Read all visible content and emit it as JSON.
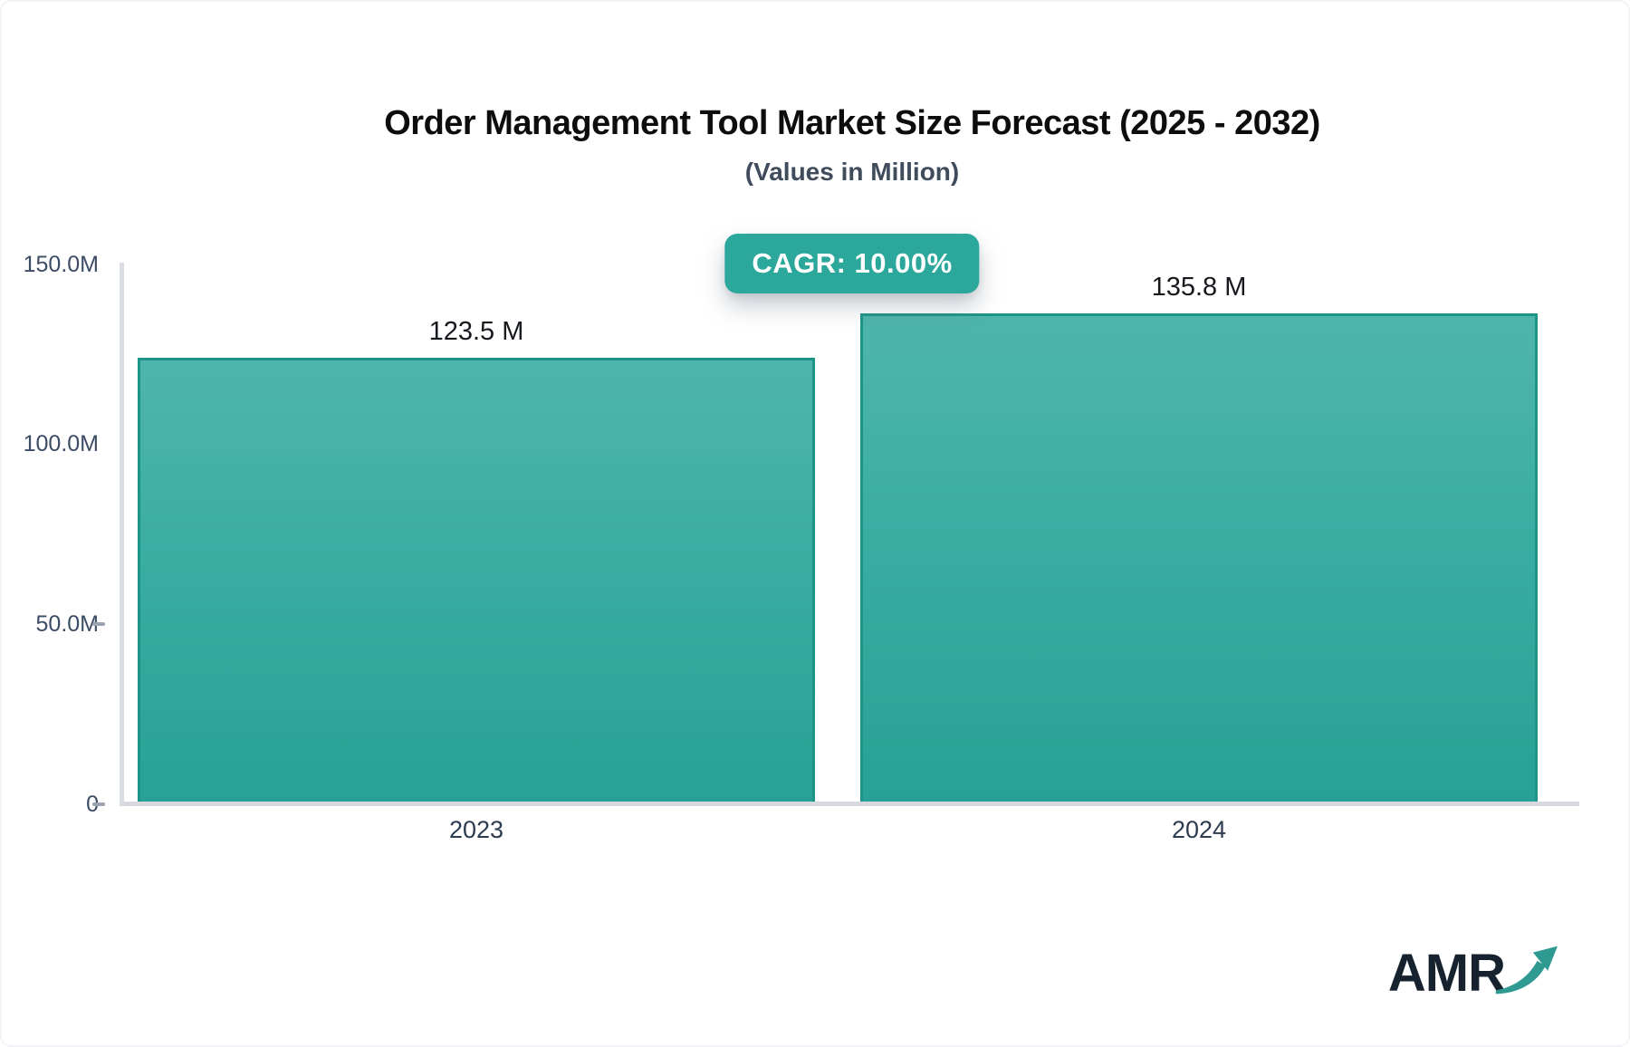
{
  "chart_data": {
    "type": "bar",
    "title": "Order Management Tool Market Size Forecast (2025 - 2032)",
    "subtitle": "(Values in Million)",
    "cagr_badge": "CAGR: 10.00%",
    "categories": [
      "2023",
      "2024"
    ],
    "values": [
      123.5,
      135.8
    ],
    "value_labels": [
      "123.5 M",
      "135.8 M"
    ],
    "unit": "Million",
    "ylim": [
      0,
      150
    ],
    "ytick_labels": [
      "150.0M",
      "100.0M",
      "50.0M",
      "0"
    ],
    "grid": false,
    "legend_position": "none",
    "bar_color_top": "#4fb5ac",
    "bar_color_bottom": "#27a195",
    "bar_border_color": "#1d9488",
    "accent_color": "#2ba89b",
    "axis_line_color": "#d6dade"
  },
  "branding": {
    "logo_text": "AMR",
    "logo_arrow_icon": "trend-up-arrow",
    "logo_text_color": "#16222d",
    "logo_arrow_color": "#2f9a92"
  }
}
